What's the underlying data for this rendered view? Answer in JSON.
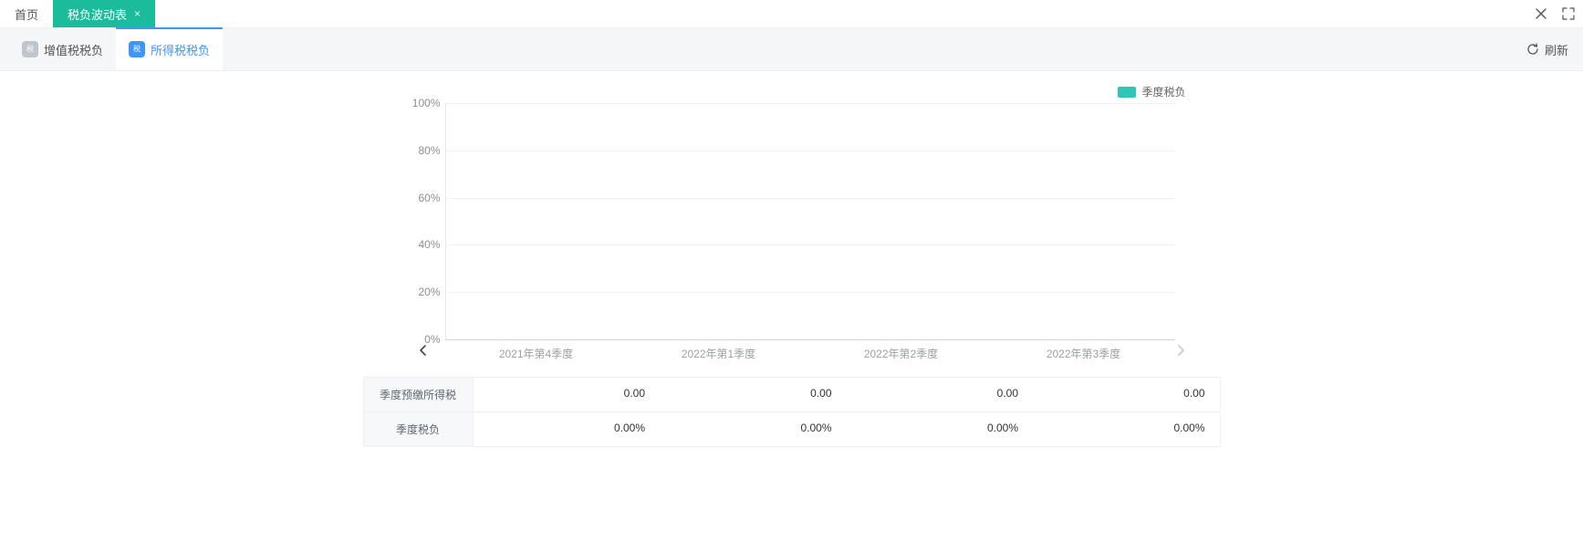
{
  "top_tabs": {
    "home": "首页",
    "active": {
      "label": "税负波动表",
      "close_glyph": "×"
    }
  },
  "toolbar": {
    "tab_vat": "增值税税负",
    "tab_income": "所得税税负",
    "refresh": "刷新"
  },
  "chart": {
    "type": "bar",
    "legend_label": "季度税负",
    "legend_color": "#2ec7b6",
    "categories": [
      "2021年第4季度",
      "2022年第1季度",
      "2022年第2季度",
      "2022年第3季度"
    ],
    "values": [
      0,
      0,
      0,
      0
    ],
    "ylim": [
      0,
      100
    ],
    "ytick_step": 20,
    "ytick_suffix": "%",
    "grid_color": "#f0f1f3",
    "axis_color": "#cfd3d8",
    "background_color": "#ffffff",
    "label_color": "#9aa0a6",
    "ylabel_fontsize": 12,
    "xlabel_fontsize": 12
  },
  "table": {
    "row_headers": [
      "季度预缴所得税",
      "季度税负"
    ],
    "rows": [
      [
        "0.00",
        "0.00",
        "0.00",
        "0.00"
      ],
      [
        "0.00%",
        "0.00%",
        "0.00%",
        "0.00%"
      ]
    ]
  },
  "colors": {
    "accent_green": "#1abc9c",
    "accent_blue": "#3b97ff"
  }
}
